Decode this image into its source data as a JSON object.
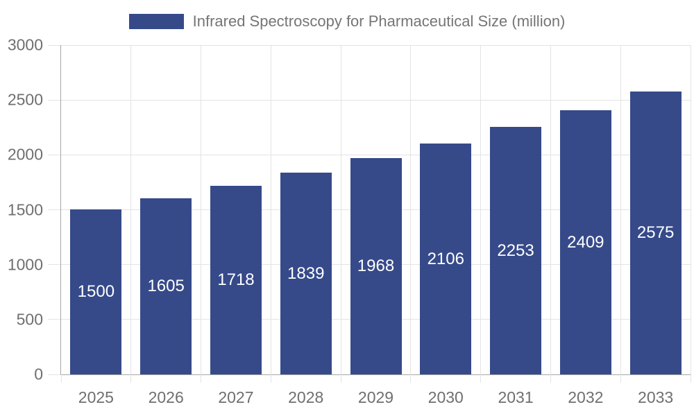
{
  "legend": {
    "label": "Infrared Spectroscopy for Pharmaceutical Size (million)"
  },
  "colors": {
    "background": "#FFFFFF",
    "bar": "#364A8A",
    "bar_label": "#FFFFFF",
    "axis_line": "#A6A6A6",
    "grid_line": "#E3E3E3",
    "axis_text": "#6F6F6F",
    "legend_text": "#757575"
  },
  "chart_data": {
    "type": "bar",
    "title": "Infrared Spectroscopy for Pharmaceutical Size (million)",
    "series_name": "Infrared Spectroscopy for Pharmaceutical Size (million)",
    "categories": [
      "2025",
      "2026",
      "2027",
      "2028",
      "2029",
      "2030",
      "2031",
      "2032",
      "2033"
    ],
    "values": [
      1500,
      1605,
      1718,
      1839,
      1968,
      2106,
      2253,
      2409,
      2575
    ],
    "xlabel": "",
    "ylabel": "",
    "ylim": [
      0,
      3000
    ],
    "yticks": [
      0,
      500,
      1000,
      1500,
      2000,
      2500,
      3000
    ],
    "grid": true,
    "legend_position": "top",
    "value_label_position": "inside-center"
  }
}
